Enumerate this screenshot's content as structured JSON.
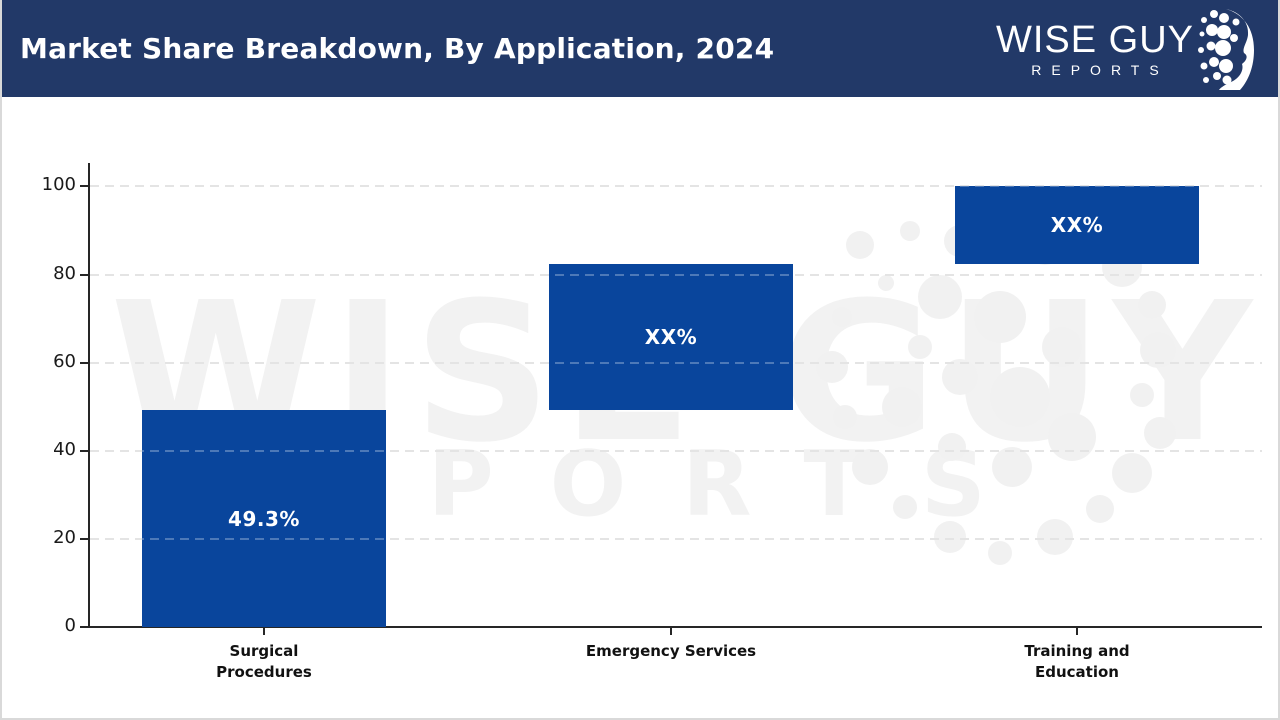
{
  "header": {
    "title": "Market Share Breakdown, By Application, 2024",
    "logo": {
      "name": "WISE GUY REPORTS",
      "line1": "WISE GUY",
      "line2": "REPORTS"
    }
  },
  "watermark": {
    "line1": "WISE GUY",
    "line2": "REPORTS"
  },
  "chart_data": {
    "type": "bar",
    "variant": "floating-waterfall-segments",
    "title": "Market Share Breakdown, By Application, 2024",
    "categories": [
      "Surgical Procedures",
      "Emergency Services",
      "Training and Education"
    ],
    "category_label_lines": [
      [
        "Surgical",
        "Procedures"
      ],
      [
        "Emergency Services"
      ],
      [
        "Training and",
        "Education"
      ]
    ],
    "segments": [
      {
        "category": "Surgical Procedures",
        "start": 0,
        "end": 49.3,
        "value_label": "49.3%"
      },
      {
        "category": "Emergency Services",
        "start": 49.3,
        "end": 82.3,
        "value_label": "XX%"
      },
      {
        "category": "Training and Education",
        "start": 82.3,
        "end": 100,
        "value_label": "XX%"
      }
    ],
    "xlabel": "",
    "ylabel": "",
    "yticks": [
      0,
      20,
      40,
      60,
      80,
      100
    ],
    "ylim": [
      0,
      105
    ],
    "grid": "horizontal-dashed",
    "legend": "none",
    "bar_color": "#09459c"
  },
  "colors": {
    "header_bg": "#223968",
    "bar": "#09459c",
    "bar_label_text": "#ffffff",
    "grid_line": "#d9d9d9",
    "axis_line": "#262626",
    "tick_text": "#1a1a1a",
    "category_text": "#111111",
    "page_bg": "#ffffff",
    "page_border": "#d9d9d9",
    "watermark": "#f2f2f2"
  }
}
